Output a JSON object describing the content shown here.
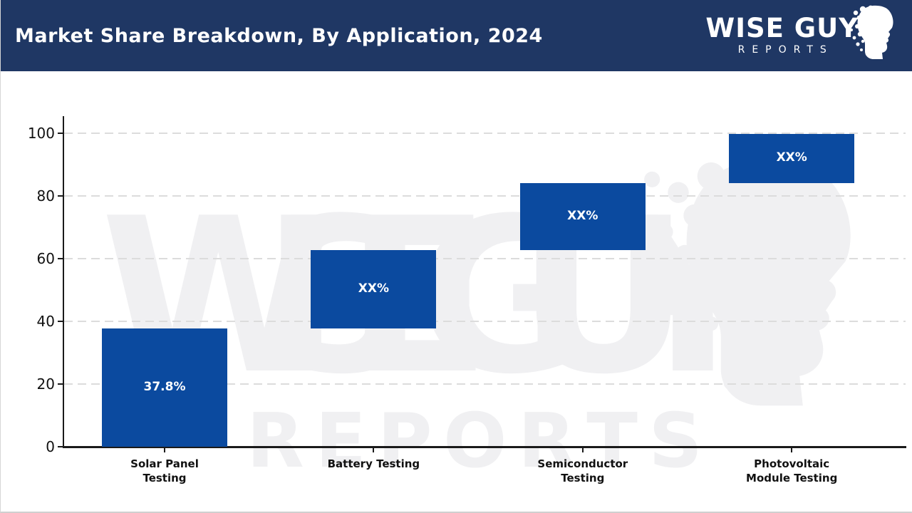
{
  "header": {
    "title": "Market Share Breakdown, By Application, 2024",
    "logo": {
      "line1": "WISE GUY",
      "line2": "REPORTS"
    }
  },
  "watermark": {
    "line1": "WISE GUY",
    "line2": "REPORTS"
  },
  "colors": {
    "header_bg": "#1f3764",
    "bar_blue": "#0b4a9f",
    "grid_gray": "#dcdcdc",
    "axis_black": "#1a1a1a",
    "watermark_gray": "#f0f0f2",
    "title_text": "#ffffff"
  },
  "chart_data": {
    "type": "bar",
    "subtype": "waterfall",
    "title": "Market Share Breakdown, By Application, 2024",
    "categories": [
      [
        "Solar Panel",
        "Testing"
      ],
      [
        "Battery Testing"
      ],
      [
        "Semiconductor",
        "Testing"
      ],
      [
        "Photovoltaic",
        "Module Testing"
      ]
    ],
    "segments": [
      {
        "start": 0,
        "end": 37.8,
        "label": "37.8%"
      },
      {
        "start": 37.8,
        "end": 62.7,
        "label": "XX%"
      },
      {
        "start": 62.7,
        "end": 84.1,
        "label": "XX%"
      },
      {
        "start": 84.1,
        "end": 99.8,
        "label": "XX%"
      }
    ],
    "ylim": [
      0,
      105
    ],
    "yticks": [
      0,
      20,
      40,
      60,
      80,
      100
    ],
    "grid": "horizontal-dashed",
    "legend": "none",
    "bar_color": "#0b4a9f",
    "bar_label_color": "#ffffff"
  }
}
